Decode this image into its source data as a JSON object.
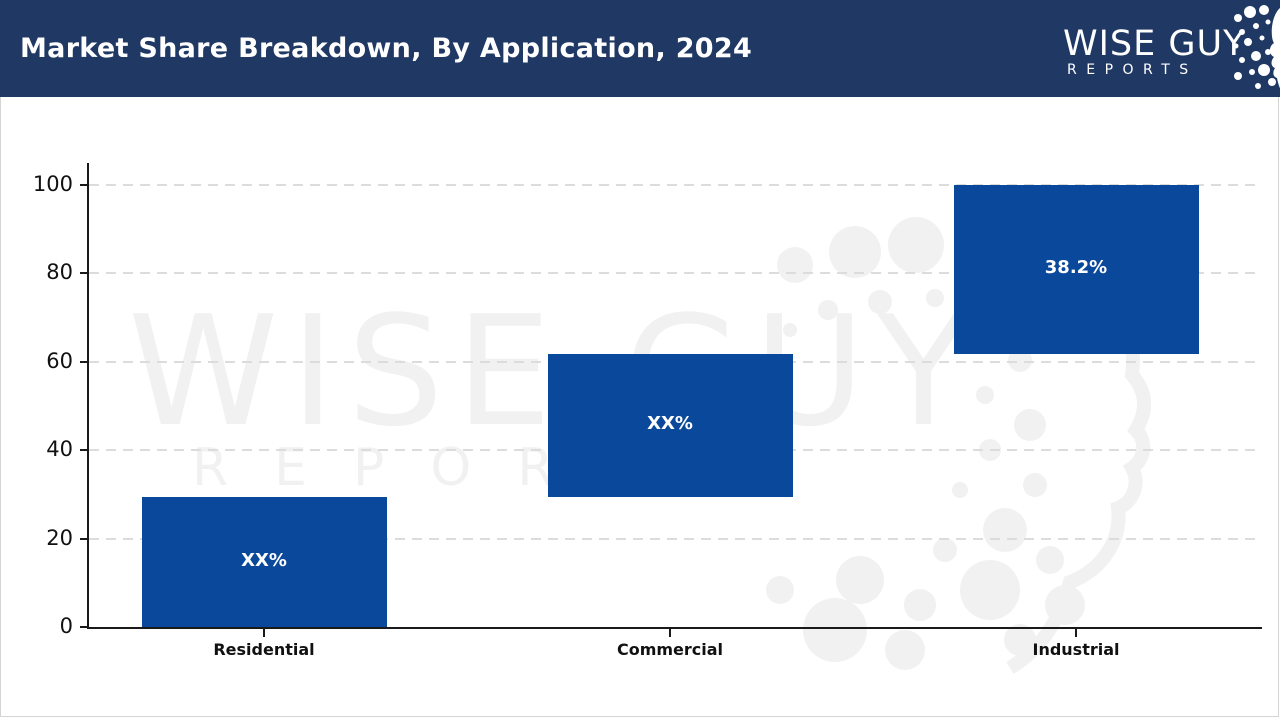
{
  "header": {
    "title": "Market Share Breakdown, By Application, 2024",
    "logo": {
      "line1": "WISE GUY",
      "line2": "REPORTS"
    }
  },
  "watermark": {
    "line1": "WISE GUY",
    "line2": "REPORTS"
  },
  "chart_data": {
    "type": "bar",
    "subtype": "stacked_percentage_waterfall",
    "title": "Market Share Breakdown, By Application, 2024",
    "categories": [
      "Residential",
      "Commercial",
      "Industrial"
    ],
    "segments": [
      {
        "category": "Residential",
        "start": 0,
        "end": 29.5,
        "value_label": "XX%"
      },
      {
        "category": "Commercial",
        "start": 29.5,
        "end": 61.8,
        "value_label": "XX%"
      },
      {
        "category": "Industrial",
        "start": 61.8,
        "end": 100,
        "value_label": "38.2%"
      }
    ],
    "yticks": [
      0,
      20,
      40,
      60,
      80,
      100
    ],
    "ylim": [
      0,
      105
    ],
    "xlabel": "",
    "ylabel": "",
    "grid": "horizontal_dashed",
    "legend": "none",
    "bar_color": "#0A489B",
    "bar_label_color": "#FFFFFF"
  },
  "colors": {
    "header_bg": "#203864",
    "axis": "#1A1A1A",
    "grid": "#DCDCDC",
    "watermark": "#F1F1F1",
    "frame_border": "#D4D4D4"
  }
}
